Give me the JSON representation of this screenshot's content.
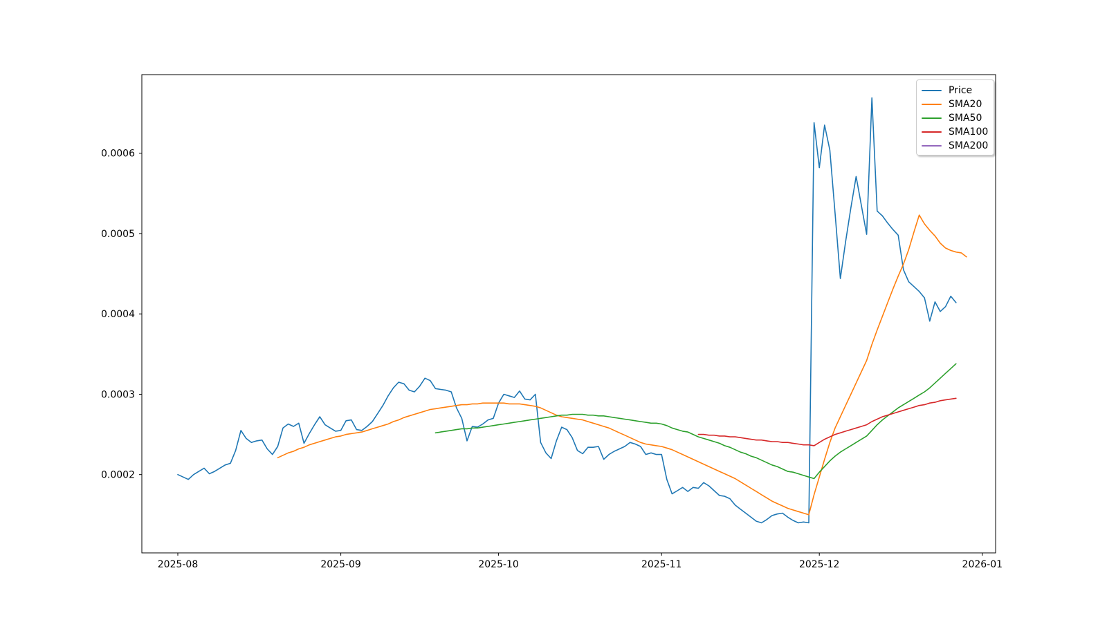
{
  "window": {
    "background_color": "#ffffff",
    "type": "static-plot"
  },
  "chart_data": {
    "type": "line",
    "title": "",
    "xlabel": "",
    "ylabel": "",
    "grid": false,
    "value_unit": 0.0001,
    "start_date": "2025-08-01",
    "x_axis": {
      "ticks": [
        {
          "day": 0,
          "label": "2025-08"
        },
        {
          "day": 31,
          "label": "2025-09"
        },
        {
          "day": 61,
          "label": "2025-10"
        },
        {
          "day": 92,
          "label": "2025-11"
        },
        {
          "day": 122,
          "label": "2025-12"
        },
        {
          "day": 153,
          "label": "2026-01"
        }
      ]
    },
    "y_axis": {
      "ticks": [
        {
          "value": 2,
          "label": "0.0002"
        },
        {
          "value": 3,
          "label": "0.0003"
        },
        {
          "value": 4,
          "label": "0.0004"
        },
        {
          "value": 5,
          "label": "0.0005"
        },
        {
          "value": 6,
          "label": "0.0006"
        }
      ],
      "range_units": [
        1.03,
        6.98
      ]
    },
    "legend": {
      "position": "upper-right"
    },
    "series": [
      {
        "name": "Price",
        "color": "#1f77b4",
        "start_day": 0,
        "start_date": "2025-08-01",
        "values_in_units_of_0.0001": true,
        "values": [
          2.0,
          1.97,
          1.94,
          2.0,
          2.04,
          2.08,
          2.01,
          2.04,
          2.08,
          2.12,
          2.14,
          2.3,
          2.55,
          2.45,
          2.4,
          2.42,
          2.43,
          2.32,
          2.25,
          2.35,
          2.58,
          2.63,
          2.6,
          2.64,
          2.39,
          2.51,
          2.62,
          2.72,
          2.62,
          2.58,
          2.54,
          2.55,
          2.67,
          2.68,
          2.56,
          2.55,
          2.6,
          2.66,
          2.76,
          2.86,
          2.98,
          3.08,
          3.15,
          3.13,
          3.05,
          3.03,
          3.1,
          3.2,
          3.17,
          3.07,
          3.06,
          3.05,
          3.03,
          2.83,
          2.7,
          2.42,
          2.6,
          2.59,
          2.63,
          2.68,
          2.7,
          2.89,
          3.0,
          2.98,
          2.96,
          3.04,
          2.94,
          2.93,
          3.0,
          2.4,
          2.27,
          2.2,
          2.42,
          2.59,
          2.56,
          2.46,
          2.3,
          2.26,
          2.34,
          2.34,
          2.35,
          2.19,
          2.25,
          2.29,
          2.32,
          2.35,
          2.4,
          2.38,
          2.35,
          2.25,
          2.27,
          2.25,
          2.25,
          1.94,
          1.76,
          1.8,
          1.84,
          1.79,
          1.84,
          1.83,
          1.9,
          1.86,
          1.8,
          1.74,
          1.73,
          1.7,
          1.62,
          1.57,
          1.52,
          1.47,
          1.42,
          1.4,
          1.44,
          1.49,
          1.51,
          1.52,
          1.47,
          1.43,
          1.4,
          1.41,
          1.4,
          6.38,
          5.82,
          6.35,
          6.04,
          5.25,
          4.44,
          4.9,
          5.32,
          5.71,
          5.35,
          4.99,
          6.69,
          5.28,
          5.22,
          5.13,
          5.05,
          4.98,
          4.55,
          4.4,
          4.34,
          4.28,
          4.2,
          3.91,
          4.15,
          4.03,
          4.09,
          4.22,
          4.14
        ]
      },
      {
        "name": "SMA20",
        "color": "#ff7f0e",
        "start_day": 19,
        "start_date": "2025-08-20",
        "values": [
          2.21,
          2.24,
          2.27,
          2.29,
          2.32,
          2.34,
          2.37,
          2.39,
          2.41,
          2.43,
          2.45,
          2.47,
          2.48,
          2.5,
          2.51,
          2.52,
          2.53,
          2.55,
          2.57,
          2.59,
          2.61,
          2.63,
          2.66,
          2.68,
          2.71,
          2.73,
          2.75,
          2.77,
          2.79,
          2.81,
          2.82,
          2.83,
          2.84,
          2.85,
          2.86,
          2.87,
          2.87,
          2.88,
          2.88,
          2.89,
          2.89,
          2.89,
          2.89,
          2.89,
          2.88,
          2.88,
          2.88,
          2.87,
          2.86,
          2.85,
          2.83,
          2.8,
          2.77,
          2.74,
          2.72,
          2.71,
          2.7,
          2.69,
          2.68,
          2.66,
          2.64,
          2.62,
          2.6,
          2.58,
          2.55,
          2.52,
          2.49,
          2.46,
          2.43,
          2.4,
          2.38,
          2.37,
          2.36,
          2.35,
          2.33,
          2.31,
          2.28,
          2.25,
          2.22,
          2.19,
          2.16,
          2.13,
          2.1,
          2.07,
          2.04,
          2.01,
          1.98,
          1.95,
          1.91,
          1.87,
          1.83,
          1.79,
          1.75,
          1.71,
          1.67,
          1.64,
          1.61,
          1.58,
          1.56,
          1.54,
          1.52,
          1.5,
          1.75,
          1.97,
          2.19,
          2.4,
          2.58,
          2.72,
          2.86,
          3.0,
          3.14,
          3.28,
          3.42,
          3.62,
          3.8,
          3.97,
          4.14,
          4.31,
          4.47,
          4.62,
          4.8,
          5.02,
          5.23,
          5.12,
          5.04,
          4.97,
          4.88,
          4.82,
          4.79,
          4.77,
          4.76,
          4.71
        ]
      },
      {
        "name": "SMA50",
        "color": "#2ca02c",
        "start_day": 49,
        "start_date": "2025-09-19",
        "values": [
          2.52,
          2.53,
          2.54,
          2.55,
          2.56,
          2.57,
          2.57,
          2.58,
          2.58,
          2.59,
          2.6,
          2.61,
          2.62,
          2.63,
          2.64,
          2.65,
          2.66,
          2.67,
          2.68,
          2.69,
          2.7,
          2.71,
          2.72,
          2.73,
          2.74,
          2.74,
          2.75,
          2.75,
          2.75,
          2.74,
          2.74,
          2.73,
          2.73,
          2.72,
          2.71,
          2.7,
          2.69,
          2.68,
          2.67,
          2.66,
          2.65,
          2.64,
          2.64,
          2.63,
          2.61,
          2.58,
          2.56,
          2.54,
          2.53,
          2.5,
          2.47,
          2.45,
          2.43,
          2.41,
          2.39,
          2.36,
          2.34,
          2.31,
          2.28,
          2.26,
          2.23,
          2.21,
          2.18,
          2.15,
          2.12,
          2.1,
          2.07,
          2.04,
          2.03,
          2.01,
          1.99,
          1.97,
          1.95,
          2.03,
          2.1,
          2.17,
          2.23,
          2.28,
          2.32,
          2.36,
          2.4,
          2.44,
          2.48,
          2.55,
          2.62,
          2.68,
          2.73,
          2.78,
          2.83,
          2.87,
          2.91,
          2.95,
          2.99,
          3.03,
          3.08,
          3.14,
          3.2,
          3.26,
          3.32,
          3.38
        ]
      },
      {
        "name": "SMA100",
        "color": "#d62728",
        "start_day": 99,
        "start_date": "2025-11-08",
        "values": [
          2.5,
          2.5,
          2.49,
          2.49,
          2.48,
          2.48,
          2.47,
          2.47,
          2.46,
          2.45,
          2.44,
          2.43,
          2.43,
          2.42,
          2.41,
          2.41,
          2.4,
          2.4,
          2.39,
          2.38,
          2.37,
          2.37,
          2.36,
          2.4,
          2.44,
          2.47,
          2.5,
          2.52,
          2.54,
          2.56,
          2.58,
          2.6,
          2.62,
          2.66,
          2.69,
          2.72,
          2.74,
          2.76,
          2.78,
          2.8,
          2.82,
          2.84,
          2.86,
          2.87,
          2.89,
          2.9,
          2.92,
          2.93,
          2.94,
          2.95
        ]
      },
      {
        "name": "SMA200",
        "color": "#9467bd",
        "start_day": 199,
        "start_date": null,
        "note": "window longer than plotted data range; no line visible, legend entry only",
        "values": []
      }
    ]
  }
}
